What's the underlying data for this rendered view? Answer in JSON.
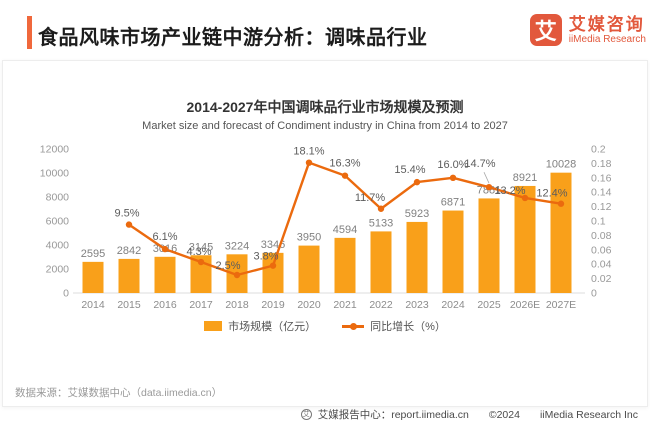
{
  "header": {
    "title": "食品风味市场产业链中游分析：调味品行业"
  },
  "logo": {
    "mark": "艾",
    "name": "艾媒咨询",
    "subtitle": "iiMedia Research"
  },
  "chart": {
    "title": "2014-2027年中国调味品行业市场规模及预测",
    "subtitle": "Market size and forecast of Condiment industry in China from 2014 to 2027"
  },
  "chart_data": {
    "type": "combo",
    "categories": [
      "2014",
      "2015",
      "2016",
      "2017",
      "2018",
      "2019",
      "2020",
      "2021",
      "2022",
      "2023",
      "2024",
      "2025",
      "2026E",
      "2027E"
    ],
    "series": [
      {
        "name": "市场规模（亿元）",
        "type": "bar",
        "axis": "left",
        "values": [
          2595,
          2842,
          3016,
          3145,
          3224,
          3346,
          3950,
          4594,
          5133,
          5923,
          6871,
          7881,
          8921,
          10028
        ]
      },
      {
        "name": "同比增长（%）",
        "type": "line",
        "axis": "right",
        "values": [
          null,
          9.5,
          6.1,
          4.3,
          2.5,
          3.8,
          18.1,
          16.3,
          11.7,
          15.4,
          16.0,
          14.7,
          13.2,
          12.4
        ],
        "labels": [
          null,
          "9.5%",
          "6.1%",
          "4.3%",
          "2.5%",
          "3.8%",
          "18.1%",
          "16.3%",
          "11.7%",
          "15.4%",
          "16.0%",
          "14.7%",
          "13.2%",
          "12.4%"
        ]
      }
    ],
    "ylim_left": [
      0,
      12000
    ],
    "left_ticks": [
      "0",
      "2000",
      "4000",
      "6000",
      "8000",
      "10000",
      "12000"
    ],
    "ylim_right": [
      0,
      0.2
    ],
    "right_ticks": [
      "0",
      "0.02",
      "0.04",
      "0.06",
      "0.08",
      "0.1",
      "0.12",
      "0.14",
      "0.16",
      "0.18",
      "0.2"
    ],
    "grid": false,
    "legend_position": "bottom",
    "colors": {
      "bar": "#F9A01A",
      "line": "#EB6A0E",
      "accent": "#E2583C"
    }
  },
  "source": "数据来源：艾媒数据中心（data.iimedia.cn）",
  "footer": {
    "report_center": "艾媒报告中心：report.iimedia.cn",
    "copyright": "©2024",
    "company": "iiMedia Research Inc"
  }
}
